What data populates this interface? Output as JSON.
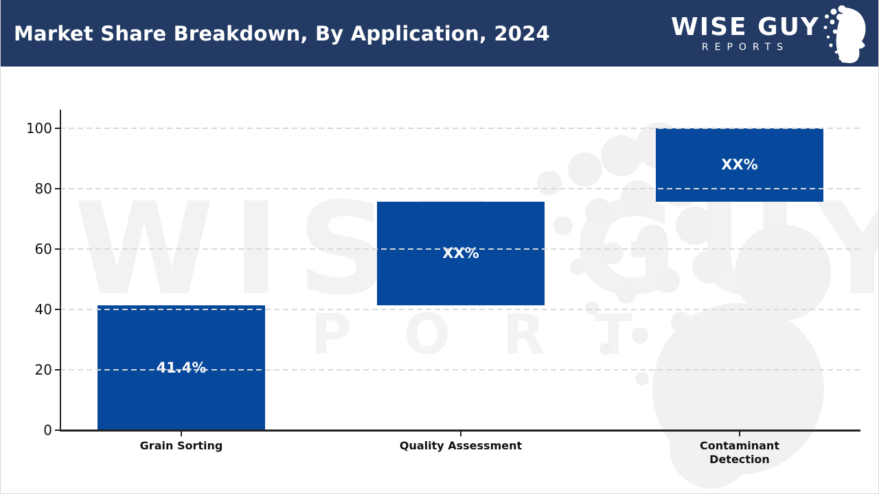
{
  "header": {
    "title": "Market Share Breakdown, By Application, 2024",
    "brand": {
      "name": "WISE GUY",
      "sub": "REPORTS"
    },
    "bg_color": "#223A64"
  },
  "watermark": {
    "line1": "WISE GUY",
    "line2": "REPORTS"
  },
  "chart_data": {
    "type": "bar",
    "variant": "floating-cumulative",
    "title": "Market Share Breakdown, By Application, 2024",
    "categories": [
      "Grain Sorting",
      "Quality Assessment",
      "Contaminant Detection"
    ],
    "segments": [
      {
        "category": "Grain Sorting",
        "start": 0,
        "end": 41.4,
        "label": "41.4%"
      },
      {
        "category": "Quality Assessment",
        "start": 41.4,
        "end": 75.7,
        "label": "XX%"
      },
      {
        "category": "Contaminant Detection",
        "start": 75.7,
        "end": 100,
        "label": "XX%"
      }
    ],
    "yticks": [
      0,
      20,
      40,
      60,
      80,
      100
    ],
    "ylim": [
      0,
      105
    ],
    "xlabel": "",
    "ylabel": "",
    "legend": "none",
    "grid": "horizontal-dashed",
    "bar_color": "#05489C",
    "bar_label_color": "#FFFFFF",
    "axis_color": "#222222",
    "grid_color": "#D9D9D9"
  }
}
